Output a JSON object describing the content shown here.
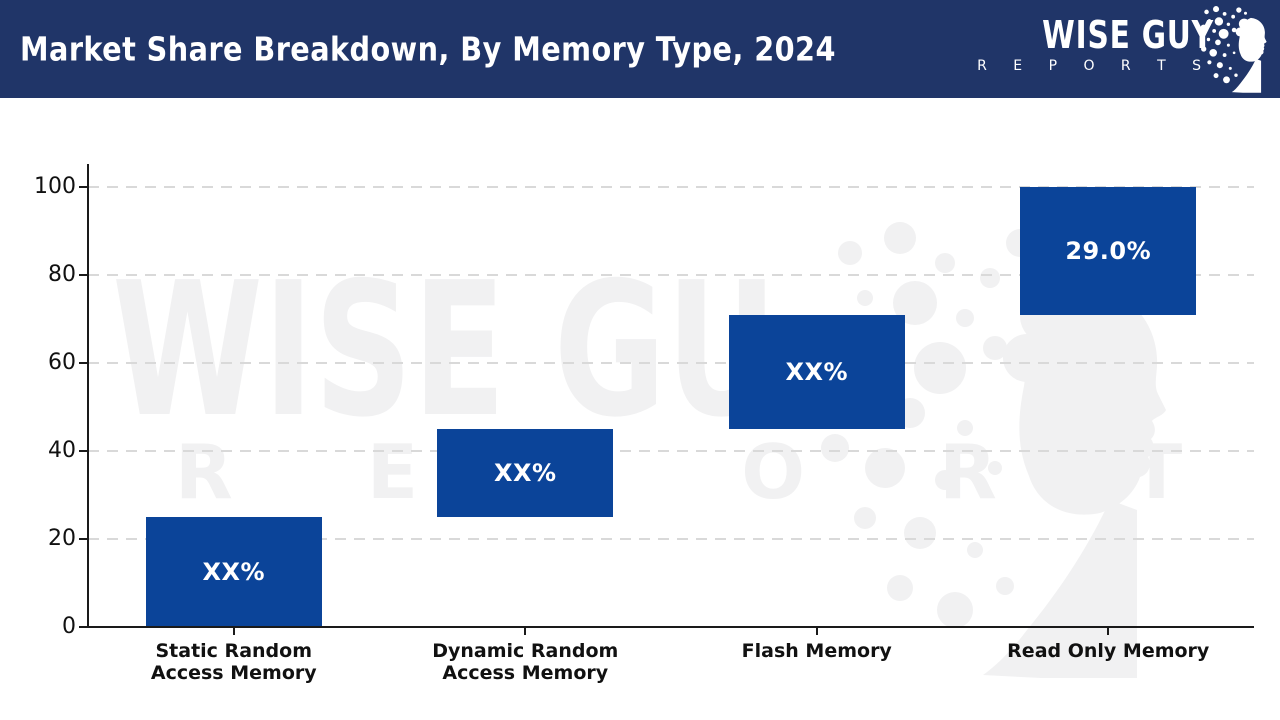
{
  "colors": {
    "header_bg": "#203568",
    "bar": "#0b4499",
    "grid": "#d9d9d9",
    "axis": "#1a1a1a",
    "watermark": "#f1f1f2",
    "title_text": "#ffffff"
  },
  "header": {
    "title": "Market Share Breakdown, By Memory Type, 2024",
    "logo": {
      "line1": "WISE GUY",
      "line2": "R E P O R T S"
    }
  },
  "watermark": {
    "line1": "WISE GU",
    "line2": "R E P O R T S"
  },
  "chart_data": {
    "type": "bar",
    "subtype": "floating-waterfall",
    "title": "Market Share Breakdown, By Memory Type, 2024",
    "categories": [
      "Static Random Access Memory",
      "Dynamic Random Access Memory",
      "Flash Memory",
      "Read Only Memory"
    ],
    "category_label_lines": [
      [
        "Static Random",
        "Access Memory"
      ],
      [
        "Dynamic Random",
        "Access Memory"
      ],
      [
        "Flash Memory"
      ],
      [
        "Read Only Memory"
      ]
    ],
    "segments": [
      {
        "category": "Static Random Access Memory",
        "start": 0,
        "end": 25,
        "label": "XX%"
      },
      {
        "category": "Dynamic Random Access Memory",
        "start": 25,
        "end": 45,
        "label": "XX%"
      },
      {
        "category": "Flash Memory",
        "start": 45,
        "end": 71,
        "label": "XX%"
      },
      {
        "category": "Read Only Memory",
        "start": 71,
        "end": 100,
        "label": "29.0%"
      }
    ],
    "yticks": [
      0,
      20,
      40,
      60,
      80,
      100
    ],
    "ylim": [
      0,
      100
    ],
    "xlabel": "",
    "ylabel": "",
    "legend": "none",
    "grid": "horizontal-dashed"
  }
}
